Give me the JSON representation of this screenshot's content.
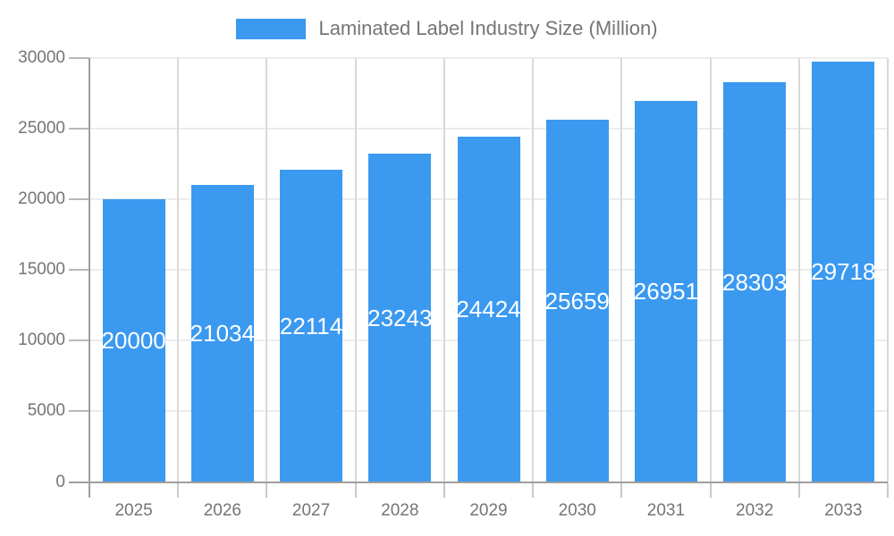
{
  "chart_data": {
    "type": "bar",
    "title": "Laminated Label Industry Size (Million)",
    "legend_position": "top-center",
    "categories": [
      "2025",
      "2026",
      "2027",
      "2028",
      "2029",
      "2030",
      "2031",
      "2032",
      "2033"
    ],
    "series": [
      {
        "name": "Laminated Label Industry Size (Million)",
        "values": [
          20000,
          21034,
          22114,
          23243,
          24424,
          25659,
          26951,
          28303,
          29718
        ]
      }
    ],
    "xlabel": "",
    "ylabel": "",
    "ylim": [
      0,
      30000
    ],
    "yticks": [
      0,
      5000,
      10000,
      15000,
      20000,
      25000,
      30000
    ],
    "grid": true,
    "bar_label_position": "inside-center",
    "colors": {
      "bar": "#3B99F0",
      "bar_label": "#FFFFFF",
      "axis_label": "#757575",
      "axis_line": "#9E9E9E",
      "grid_horizontal": "#ECECEC",
      "grid_vertical": "#D8D8D8",
      "background": "#FFFFFF"
    }
  }
}
